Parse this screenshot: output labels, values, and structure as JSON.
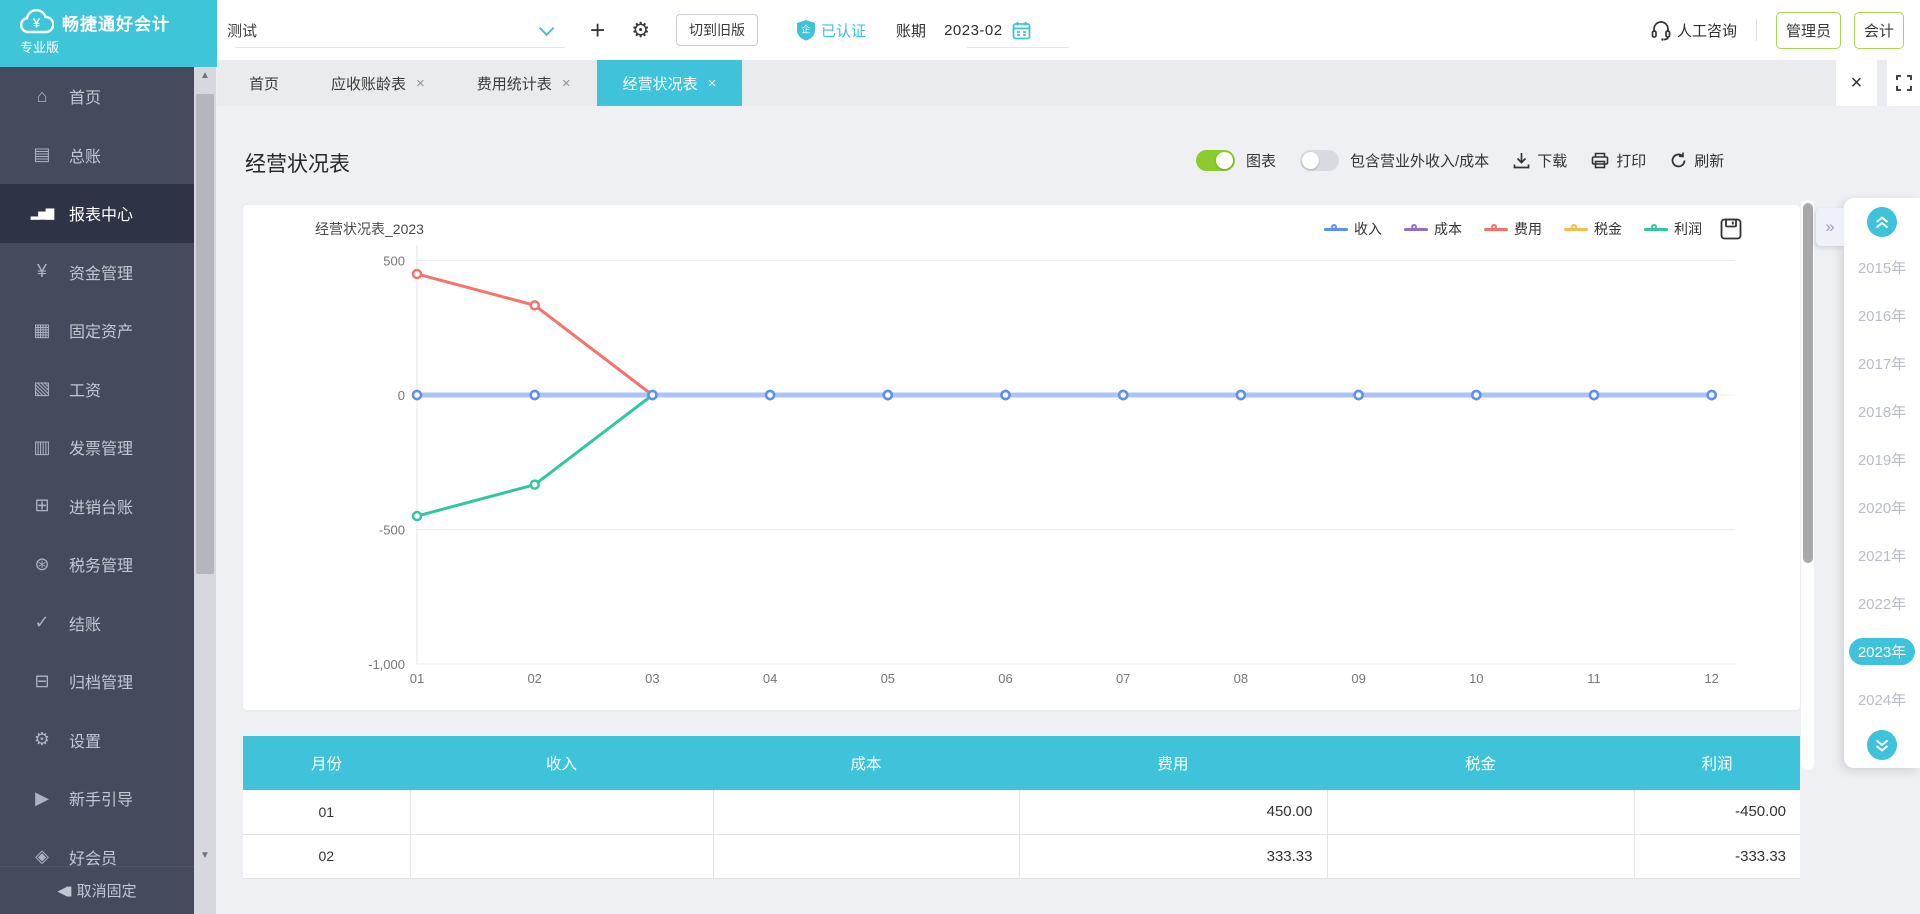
{
  "brand": {
    "name": "畅捷通好会计",
    "edition": "专业版"
  },
  "topbar": {
    "company": "测试",
    "switch_old_label": "切到旧版",
    "certified_label": "已认证",
    "period_label": "账期",
    "period_value": "2023-02",
    "support_label": "人工咨询",
    "role_badges": [
      "管理员",
      "会计"
    ]
  },
  "sidebar": {
    "items": [
      {
        "label": "首页",
        "icon": "home",
        "active": false
      },
      {
        "label": "总账",
        "icon": "ledger",
        "active": false
      },
      {
        "label": "报表中心",
        "icon": "report-center",
        "active": true
      },
      {
        "label": "资金管理",
        "icon": "funds",
        "active": false
      },
      {
        "label": "固定资产",
        "icon": "fixed-assets",
        "active": false
      },
      {
        "label": "工资",
        "icon": "payroll",
        "active": false
      },
      {
        "label": "发票管理",
        "icon": "invoice",
        "active": false
      },
      {
        "label": "进销台账",
        "icon": "trade-ledger",
        "active": false
      },
      {
        "label": "税务管理",
        "icon": "tax",
        "active": false
      },
      {
        "label": "结账",
        "icon": "closing",
        "active": false
      },
      {
        "label": "归档管理",
        "icon": "archive",
        "active": false
      },
      {
        "label": "设置",
        "icon": "settings",
        "active": false
      },
      {
        "label": "新手引导",
        "icon": "guide",
        "active": false
      },
      {
        "label": "好会员",
        "icon": "member",
        "active": false
      }
    ],
    "unpin_label": "取消固定"
  },
  "tabs": [
    {
      "label": "首页",
      "closable": false,
      "active": false
    },
    {
      "label": "应收账龄表",
      "closable": true,
      "active": false
    },
    {
      "label": "费用统计表",
      "closable": true,
      "active": false
    },
    {
      "label": "经营状况表",
      "closable": true,
      "active": true
    }
  ],
  "toolbar": {
    "title": "经营状况表",
    "toggle_chart_label": "图表",
    "toggle_chart_on": true,
    "toggle_include_label": "包含营业外收入/成本",
    "toggle_include_on": false,
    "download_label": "下载",
    "print_label": "打印",
    "refresh_label": "刷新"
  },
  "chart_data": {
    "type": "line",
    "title": "经营状况表_2023",
    "categories": [
      "01",
      "02",
      "03",
      "04",
      "05",
      "06",
      "07",
      "08",
      "09",
      "10",
      "11",
      "12"
    ],
    "series": [
      {
        "name": "收入",
        "color": "#5b8ff9",
        "line_color": "#adc3f8",
        "line_width": 5,
        "z": 10,
        "values": [
          0,
          0,
          0,
          0,
          0,
          0,
          0,
          0,
          0,
          0,
          0,
          0
        ]
      },
      {
        "name": "成本",
        "color": "#9270ca",
        "values": [
          0,
          0,
          0,
          0,
          0,
          0,
          0,
          0,
          0,
          0,
          0,
          0
        ]
      },
      {
        "name": "费用",
        "color": "#f6726a",
        "values": [
          450,
          333.33,
          0,
          0,
          0,
          0,
          0,
          0,
          0,
          0,
          0,
          0
        ]
      },
      {
        "name": "税金",
        "color": "#f5bd49",
        "values": [
          0,
          0,
          0,
          0,
          0,
          0,
          0,
          0,
          0,
          0,
          0,
          0
        ]
      },
      {
        "name": "利润",
        "color": "#2fc7a2",
        "values": [
          -450,
          -333.33,
          0,
          0,
          0,
          0,
          0,
          0,
          0,
          0,
          0,
          0
        ]
      }
    ],
    "y_ticks": [
      500,
      0,
      -500,
      -1000
    ],
    "y_tick_labels": [
      "500",
      "0",
      "-500",
      "-1,000"
    ],
    "ylim": [
      -1000,
      500
    ],
    "grid": true,
    "legend_position": "top-right"
  },
  "table": {
    "columns": [
      "月份",
      "收入",
      "成本",
      "费用",
      "税金",
      "利润"
    ],
    "rows": [
      [
        "01",
        "",
        "",
        "450.00",
        "",
        "-450.00"
      ],
      [
        "02",
        "",
        "",
        "333.33",
        "",
        "-333.33"
      ]
    ]
  },
  "year_panel": {
    "years": [
      "2015年",
      "2016年",
      "2017年",
      "2018年",
      "2019年",
      "2020年",
      "2021年",
      "2022年",
      "2023年",
      "2024年"
    ],
    "selected": "2023年"
  },
  "colors": {
    "brand_cyan": "#3ec3da",
    "sidebar_bg": "#454a5d",
    "sidebar_active_bg": "#2e3346",
    "toggle_on_green": "#8bcb2c",
    "badge_border_green": "#a6d94c",
    "page_bg": "#eef0f3"
  }
}
